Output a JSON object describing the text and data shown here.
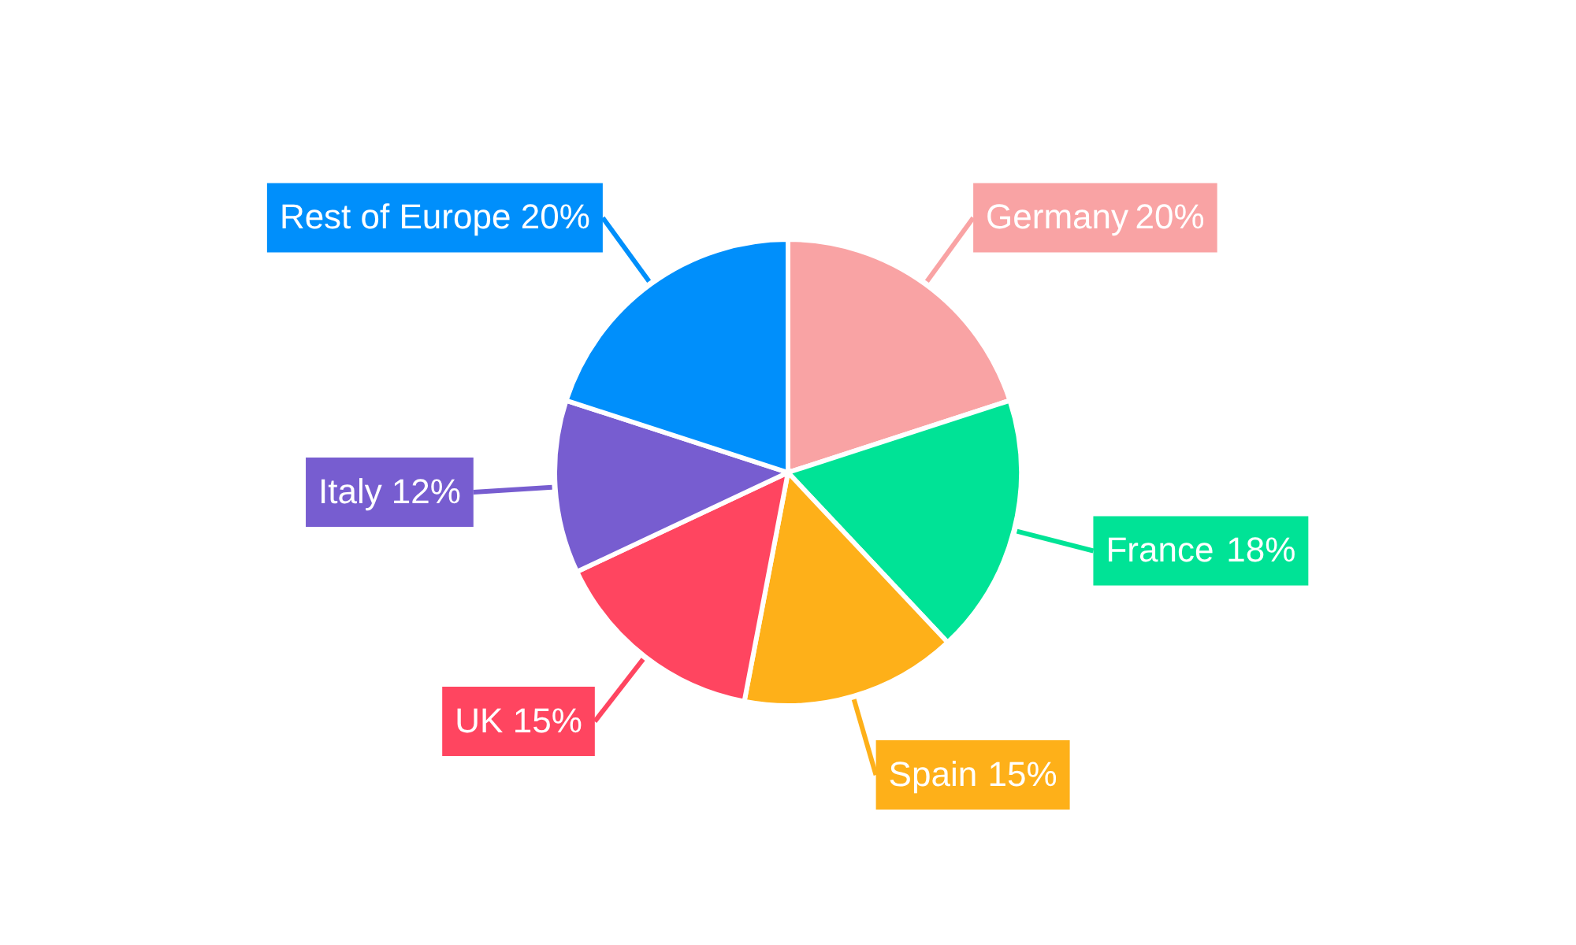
{
  "chart_data": {
    "type": "pie",
    "categories": [
      "Germany",
      "France",
      "Spain",
      "UK",
      "Italy",
      "Rest of Europe"
    ],
    "values": [
      20,
      18,
      15,
      15,
      12,
      20
    ],
    "colors": [
      "#f9a3a4",
      "#00e396",
      "#feb019",
      "#ff4560",
      "#775dd0",
      "#008ffb"
    ],
    "value_labels": [
      "20%",
      "18%",
      "15%",
      "15%",
      "12%",
      "20%"
    ]
  }
}
